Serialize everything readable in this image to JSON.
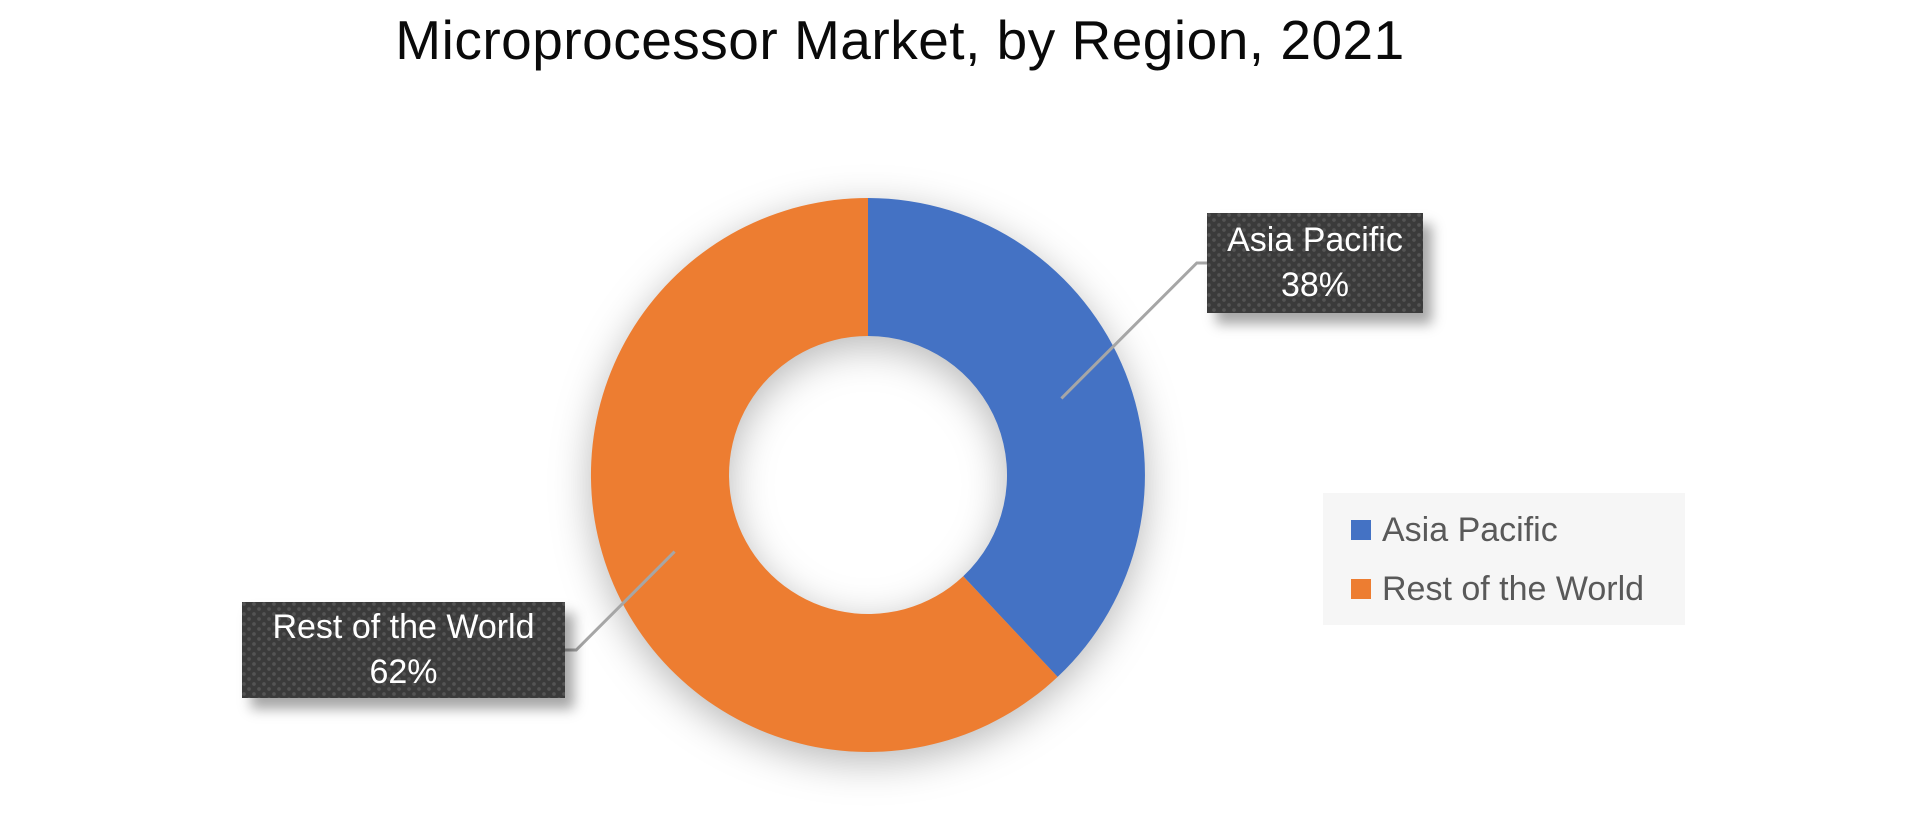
{
  "title": "Microprocessor Market, by Region, 2021",
  "chart_data": {
    "type": "pie",
    "subtype": "donut",
    "title": "Microprocessor Market, by Region, 2021",
    "categories": [
      "Asia Pacific",
      "Rest of the World"
    ],
    "values": [
      38,
      62
    ],
    "unit": "%",
    "colors": [
      "#4472C4",
      "#ED7D31"
    ],
    "start_angle_deg": 0,
    "direction": "clockwise",
    "donut_hole_ratio": 0.5,
    "legend_position": "right",
    "data_labels": [
      {
        "label": "Asia Pacific",
        "value_text": "38%"
      },
      {
        "label": "Rest of the World",
        "value_text": "62%"
      }
    ]
  },
  "callouts": [
    {
      "label": "Asia Pacific",
      "value_text": "38%"
    },
    {
      "label": "Rest of the World",
      "value_text": "62%"
    }
  ],
  "legend": {
    "items": [
      {
        "label": "Asia Pacific",
        "color": "#4472C4"
      },
      {
        "label": "Rest of the World",
        "color": "#ED7D31"
      }
    ]
  },
  "colors": {
    "slice_asia_pacific": "#4472C4",
    "slice_rest_of_world": "#ED7D31",
    "callout_background": "#3B3B3B",
    "callout_text": "#FFFFFF",
    "leader_line": "#A6A6A6",
    "legend_background": "#F6F6F6",
    "legend_text": "#595959",
    "title_text": "#0A0A0A",
    "page_background": "#FFFFFF"
  }
}
